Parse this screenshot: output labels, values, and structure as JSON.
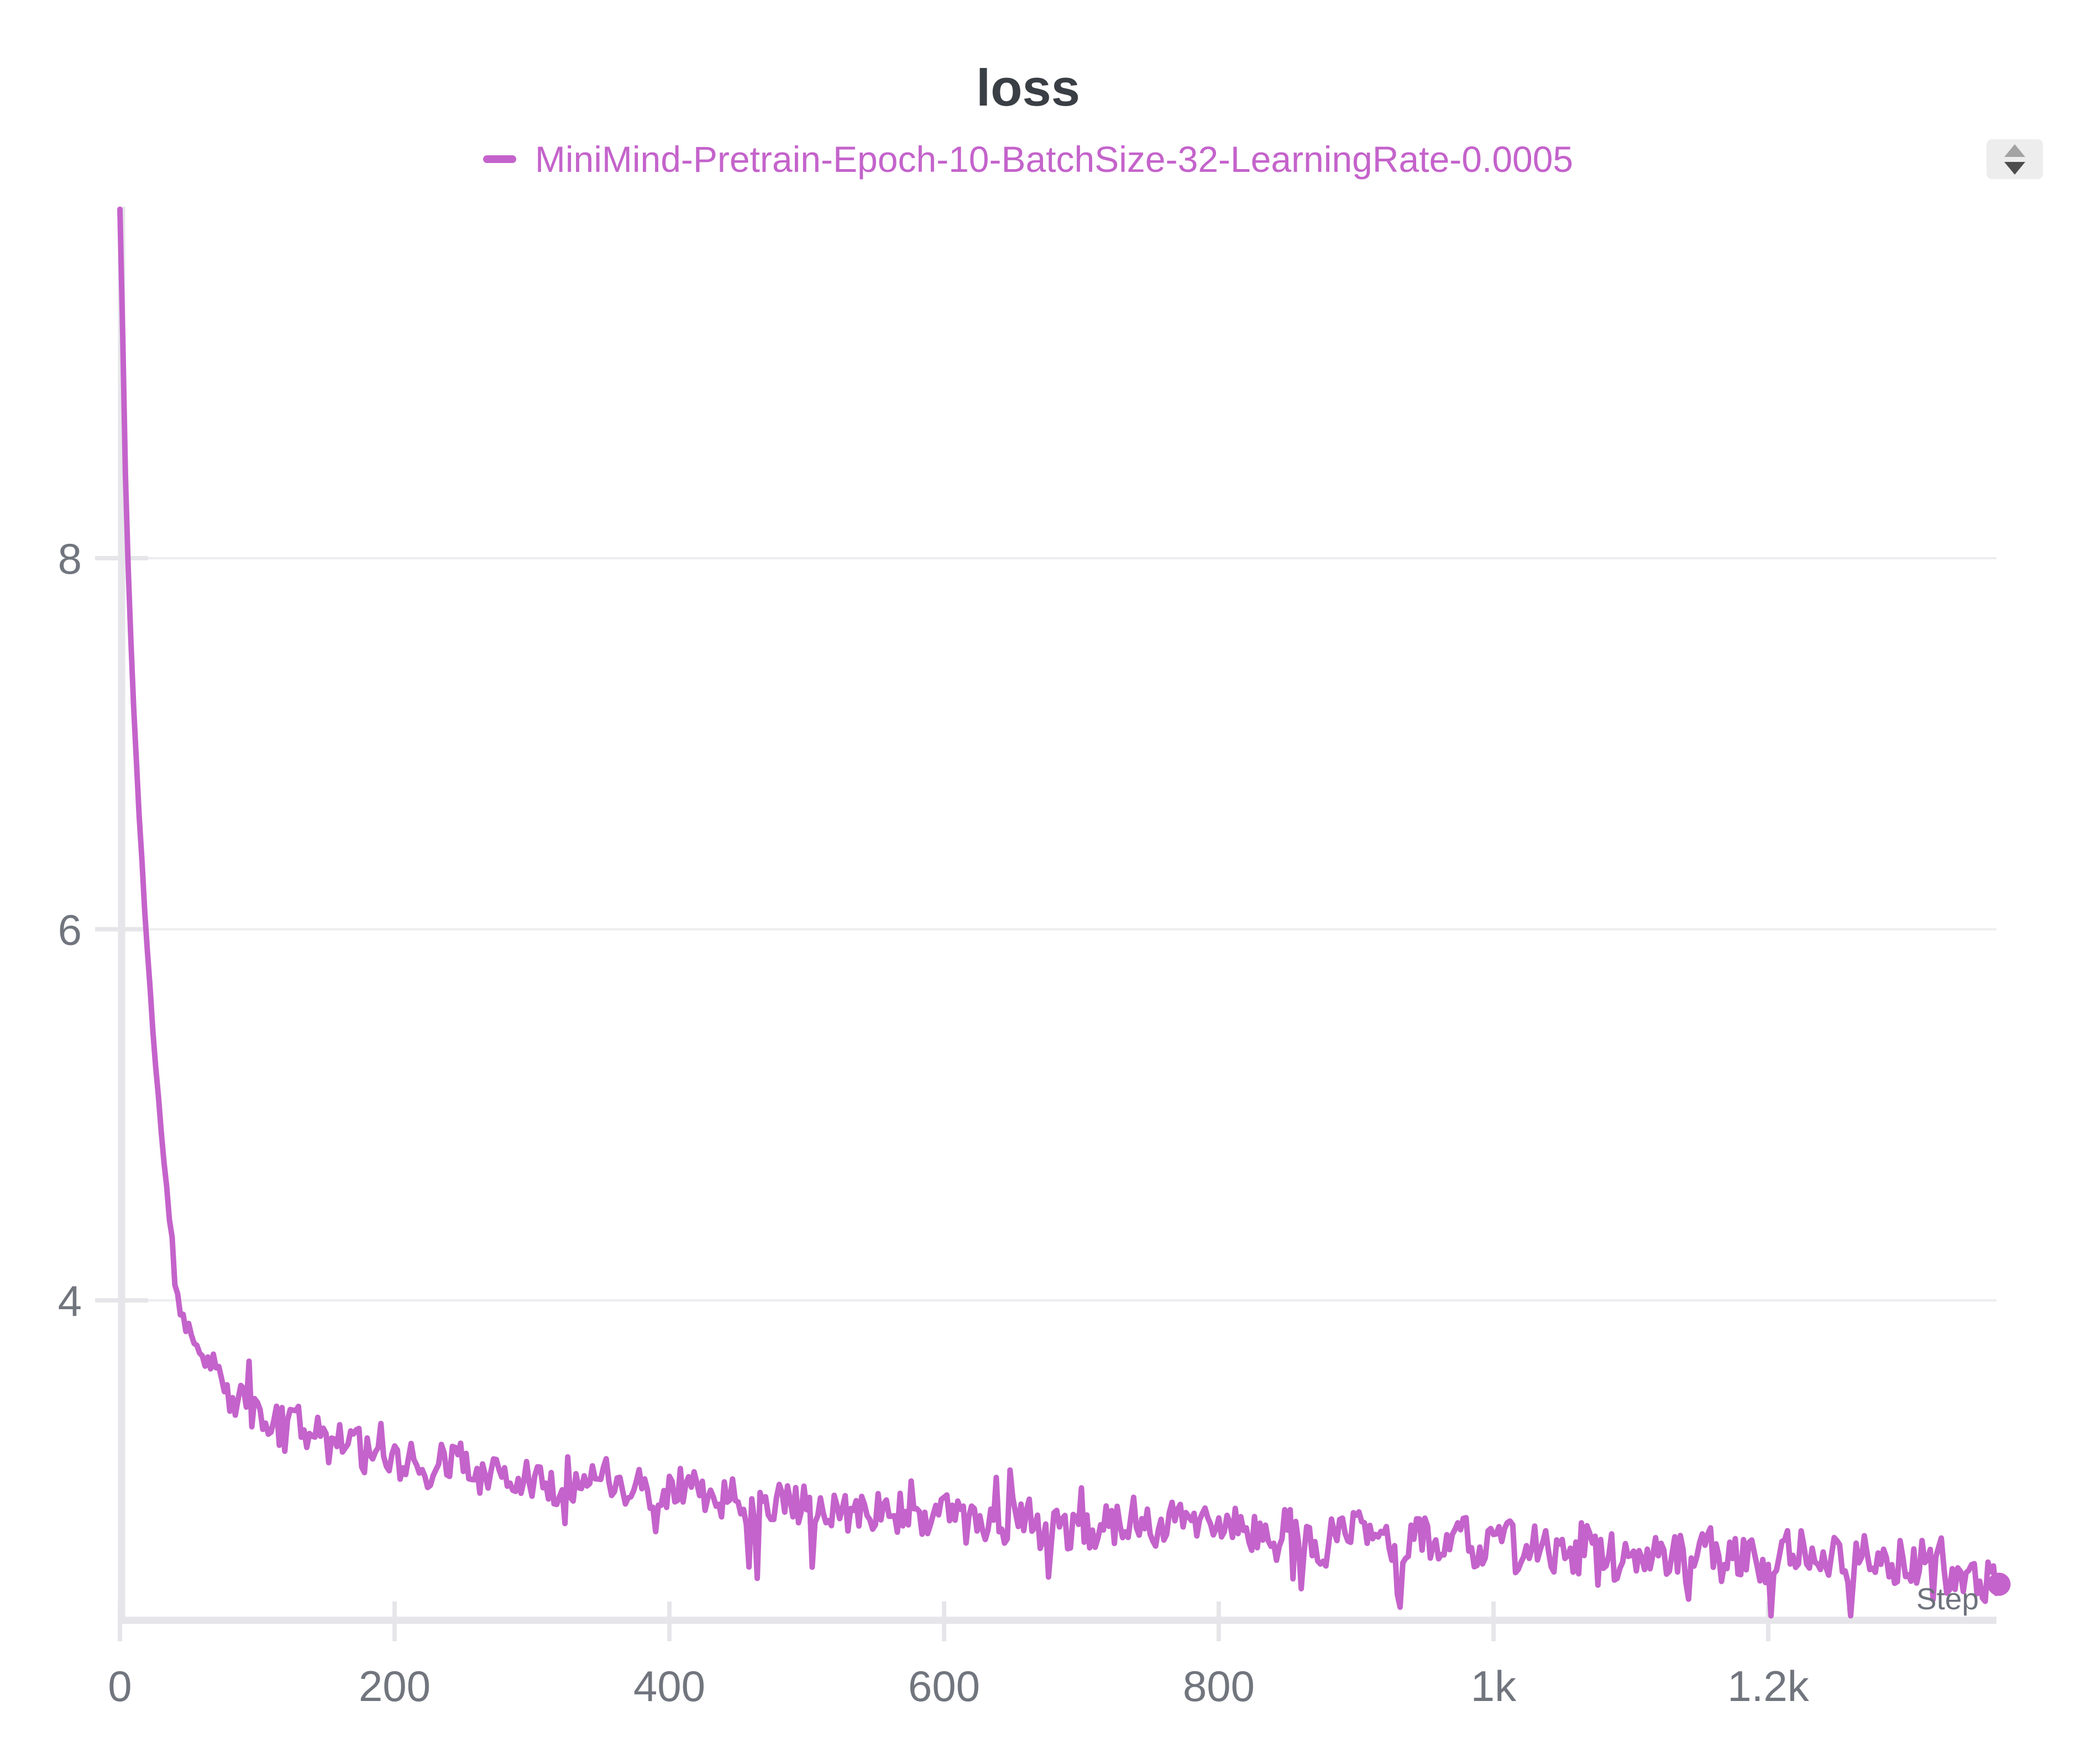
{
  "header": {
    "title": "loss"
  },
  "legend": {
    "items": [
      {
        "label": "MiniMind-Pretrain-Epoch-10-BatchSize-32-LearningRate-0.0005",
        "color": "#c463cb"
      }
    ]
  },
  "controls": {
    "sort_button": {
      "icon": "sort-up-down-triangles"
    }
  },
  "colors": {
    "series": "#c463cb",
    "title_text": "#3a3f45",
    "tick_text": "#71757e",
    "axis": "#e6e6ea",
    "grid": "#ededf0",
    "icon_bg": "#ededed",
    "icon_up": "#a3a3a3",
    "icon_down": "#4d4d4d"
  },
  "chart_data": {
    "type": "line",
    "title": "loss",
    "xlabel": "Step",
    "ylabel": "",
    "grid": "horizontal-only",
    "legend_position": "top-center",
    "xlim": [
      0,
      1369
    ],
    "ylim": [
      2.28,
      9.89
    ],
    "x_tick_labels": [
      "0",
      "200",
      "400",
      "600",
      "800",
      "1k",
      "1.2k"
    ],
    "x_tick_values": [
      0,
      200,
      400,
      600,
      800,
      1000,
      1200
    ],
    "y_tick_labels": [
      "8",
      "6",
      "4"
    ],
    "y_tick_values": [
      8,
      6,
      4
    ],
    "series": [
      {
        "name": "MiniMind-Pretrain-Epoch-10-BatchSize-32-LearningRate-0.0005",
        "color": "#c463cb",
        "sampling_interval_steps": 2,
        "seed": 11,
        "spike_probability": 0.028,
        "trend_points": [
          [
            0,
            9.88
          ],
          [
            2,
            9.2
          ],
          [
            4,
            8.45
          ],
          [
            6,
            7.95
          ],
          [
            8,
            7.55
          ],
          [
            10,
            7.2
          ],
          [
            12,
            6.9
          ],
          [
            14,
            6.62
          ],
          [
            16,
            6.38
          ],
          [
            18,
            6.12
          ],
          [
            20,
            5.88
          ],
          [
            24,
            5.45
          ],
          [
            28,
            5.08
          ],
          [
            32,
            4.75
          ],
          [
            36,
            4.45
          ],
          [
            40,
            4.15
          ],
          [
            44,
            3.98
          ],
          [
            48,
            3.88
          ],
          [
            55,
            3.76
          ],
          [
            62,
            3.68
          ],
          [
            70,
            3.6
          ],
          [
            80,
            3.52
          ],
          [
            90,
            3.46
          ],
          [
            100,
            3.41
          ],
          [
            120,
            3.34
          ],
          [
            140,
            3.28
          ],
          [
            170,
            3.22
          ],
          [
            200,
            3.16
          ],
          [
            240,
            3.11
          ],
          [
            280,
            3.07
          ],
          [
            320,
            3.04
          ],
          [
            360,
            3.01
          ],
          [
            400,
            2.98
          ],
          [
            450,
            2.94
          ],
          [
            500,
            2.9
          ],
          [
            550,
            2.87
          ],
          [
            600,
            2.84
          ],
          [
            650,
            2.82
          ],
          [
            700,
            2.79
          ],
          [
            750,
            2.77
          ],
          [
            800,
            2.75
          ],
          [
            850,
            2.73
          ],
          [
            900,
            2.71
          ],
          [
            950,
            2.69
          ],
          [
            1000,
            2.67
          ],
          [
            1050,
            2.65
          ],
          [
            1100,
            2.63
          ],
          [
            1150,
            2.62
          ],
          [
            1200,
            2.6
          ],
          [
            1250,
            2.59
          ],
          [
            1300,
            2.58
          ],
          [
            1368,
            2.52
          ]
        ],
        "noise_amplitude_points": [
          [
            0,
            0.012
          ],
          [
            30,
            0.03
          ],
          [
            45,
            0.07
          ],
          [
            60,
            0.1
          ],
          [
            100,
            0.115
          ],
          [
            300,
            0.12
          ],
          [
            700,
            0.125
          ],
          [
            1368,
            0.13
          ]
        ],
        "final_point": [
          1368,
          2.47
        ],
        "end_marker": "dot"
      }
    ]
  }
}
